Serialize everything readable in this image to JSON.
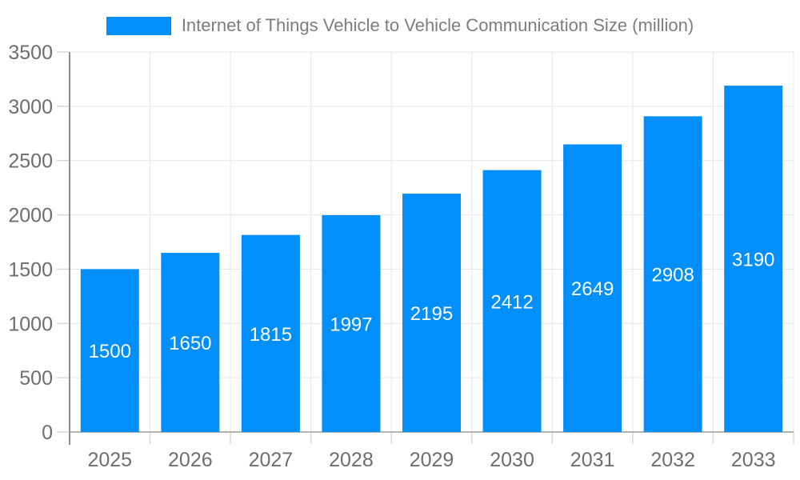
{
  "legend": {
    "label": "Internet of Things Vehicle to Vehicle Communication Size (million)",
    "swatch_color": "#008FFB"
  },
  "chart_data": {
    "type": "bar",
    "title": "Internet of Things Vehicle to Vehicle Communication Size (million)",
    "categories": [
      "2025",
      "2026",
      "2027",
      "2028",
      "2029",
      "2030",
      "2031",
      "2032",
      "2033"
    ],
    "values": [
      1500,
      1650,
      1815,
      1997,
      2195,
      2412,
      2649,
      2908,
      3190
    ],
    "series": [
      {
        "name": "Internet of Things Vehicle to Vehicle Communication Size (million)",
        "values": [
          1500,
          1650,
          1815,
          1997,
          2195,
          2412,
          2649,
          2908,
          3190
        ]
      }
    ],
    "xlabel": "",
    "ylabel": "",
    "ylim": [
      0,
      3500
    ],
    "ytick_step": 500,
    "yticks": [
      0,
      500,
      1000,
      1500,
      2000,
      2500,
      3000,
      3500
    ],
    "grid": true,
    "legend_position": "top",
    "data_labels_inside_bars": true
  },
  "colors": {
    "bar_fill": "#008FFB",
    "bar_label_text": "#ffffff",
    "gridline": "#e6e6e6",
    "x_axis_line": "#b3b3b3",
    "y_axis_line": "#8c8c8c",
    "tick_mark": "#d9d9d9",
    "axis_label_text": "#6e6e6e",
    "legend_text": "#7d7d7d",
    "background": "#ffffff"
  }
}
